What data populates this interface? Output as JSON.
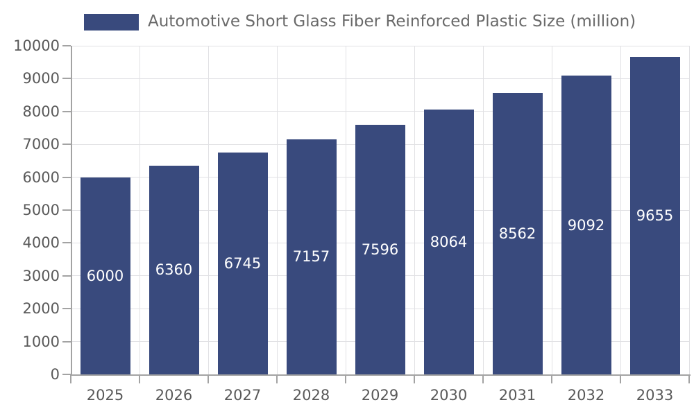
{
  "chart_data": {
    "type": "bar",
    "title": "Automotive Short Glass Fiber Reinforced Plastic Size (million)",
    "categories": [
      "2025",
      "2026",
      "2027",
      "2028",
      "2029",
      "2030",
      "2031",
      "2032",
      "2033"
    ],
    "series": [
      {
        "name": "Automotive Short Glass Fiber Reinforced Plastic Size (million)",
        "values": [
          6000,
          6360,
          6745,
          7157,
          7596,
          8064,
          8562,
          9092,
          9655
        ]
      }
    ],
    "xlabel": "",
    "ylabel": "",
    "ylim": [
      0,
      10000
    ],
    "yticks": [
      0,
      1000,
      2000,
      3000,
      4000,
      5000,
      6000,
      7000,
      8000,
      9000,
      10000
    ],
    "grid": true,
    "bar_value_labels_shown": true,
    "legend_position": "top-left",
    "colors": {
      "bar": "#394A7D",
      "grid_line": "#e1e1e4",
      "axis_line": "#a3a3a3",
      "axis_text": "#595959",
      "title_text": "#6a6a6a",
      "bar_label_text": "#ffffff",
      "background": "#ffffff"
    }
  }
}
